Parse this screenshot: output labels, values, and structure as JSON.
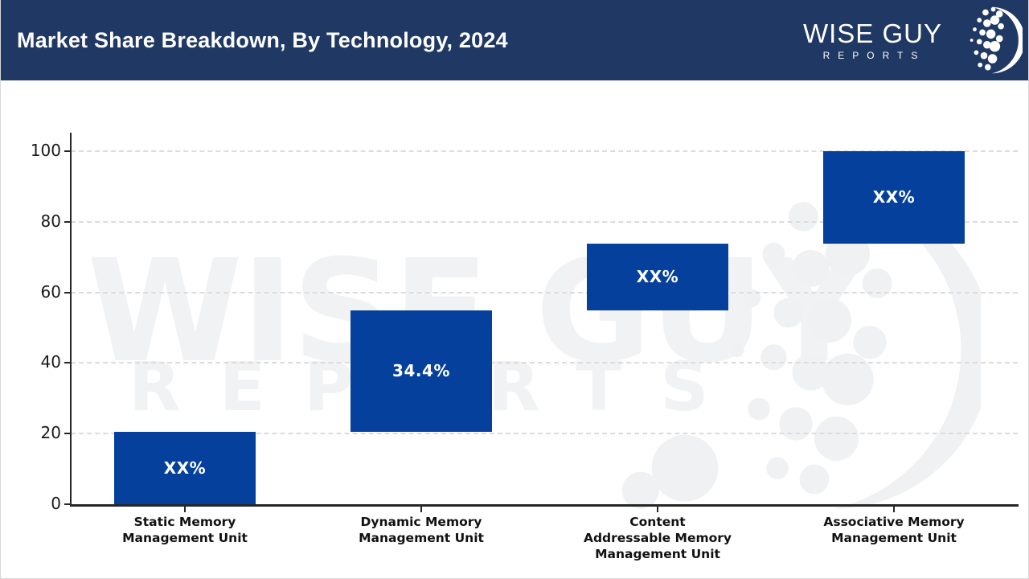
{
  "header": {
    "title": "Market Share Breakdown, By Technology, 2024",
    "logo": {
      "name": "WISE GUY",
      "tagline": "REPORTS"
    }
  },
  "watermark": {
    "line1": "WISE GUY",
    "line2": "REPORTS"
  },
  "chart_data": {
    "type": "bar",
    "subtype": "floating-waterfall",
    "title": "Market Share Breakdown, By Technology, 2024",
    "categories": [
      "Static Memory\nManagement Unit",
      "Dynamic Memory\nManagement Unit",
      "Content\nAddressable Memory\nManagement Unit",
      "Associative Memory\nManagement Unit"
    ],
    "segments": [
      {
        "label": "XX%",
        "start": 0,
        "end": 20.6
      },
      {
        "label": "34.4%",
        "start": 20.6,
        "end": 55.0
      },
      {
        "label": "XX%",
        "start": 55.0,
        "end": 73.9
      },
      {
        "label": "XX%",
        "start": 73.9,
        "end": 100
      }
    ],
    "ylim": [
      0,
      100
    ],
    "yticks": [
      0,
      20,
      40,
      60,
      80,
      100
    ],
    "xlabel": "",
    "ylabel": "",
    "grid": "horizontal-dashed",
    "legend": "none",
    "bar_color": "#05419c",
    "bar_label_color": "#ffffff"
  },
  "colors": {
    "header_bg": "#1f3864",
    "bar": "#05419c",
    "grid": "#dcdcdc",
    "axis": "#262626",
    "watermark": "#f1f2f4"
  }
}
